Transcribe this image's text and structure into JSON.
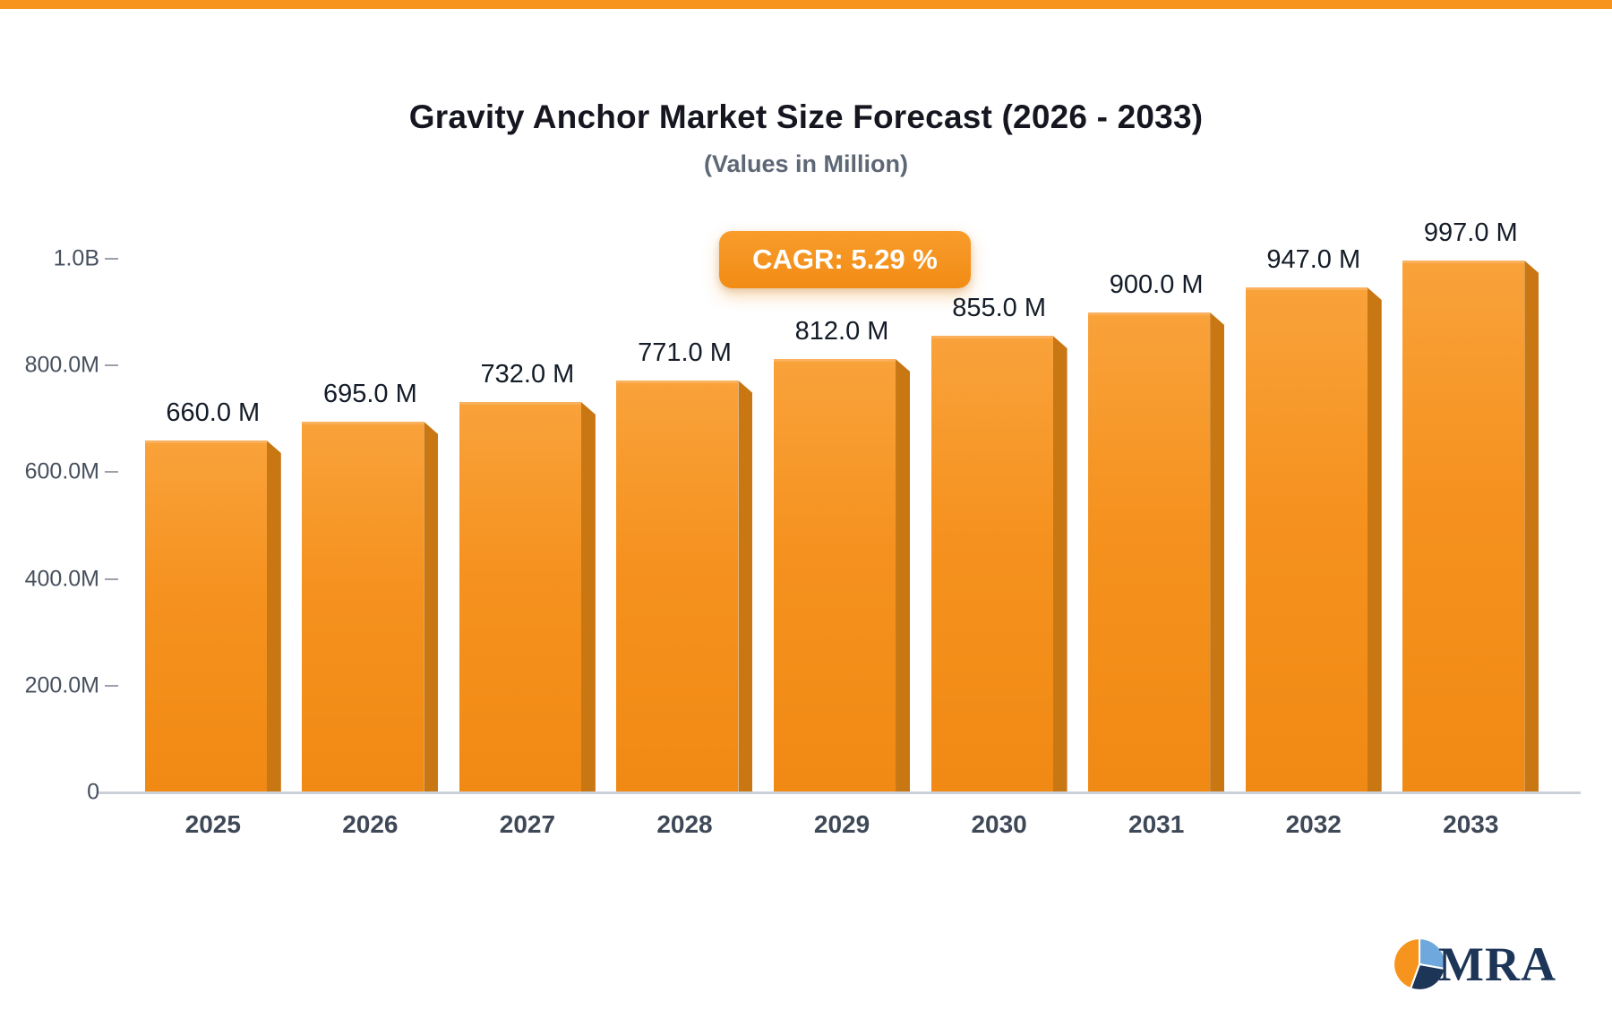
{
  "page": {
    "title": "Gravity Anchor Market Size Forecast (2026 - 2033)",
    "subtitle": "(Values in Million)",
    "cagr_badge": "CAGR: 5.29 %",
    "brand_text": "MRA"
  },
  "colors": {
    "accent_orange": "#F7941E",
    "bar_face": "#F5911E",
    "bar_side": "#C97713",
    "title_text": "#15161f",
    "subtitle_text": "#5d6775",
    "axis_text": "#47505e",
    "x_label_text": "#3e4857",
    "brand_navy": "#1d3557",
    "brand_blue": "#6FA8DC"
  },
  "chart_data": {
    "type": "bar",
    "title": "Gravity Anchor Market Size Forecast (2026 - 2033)",
    "subtitle": "(Values in Million)",
    "annotation": "CAGR: 5.29 %",
    "categories": [
      "2025",
      "2026",
      "2027",
      "2028",
      "2029",
      "2030",
      "2031",
      "2032",
      "2033"
    ],
    "values": [
      660,
      695,
      732,
      771,
      812,
      855,
      900,
      947,
      997
    ],
    "value_labels": [
      "660.0 M",
      "695.0 M",
      "732.0 M",
      "771.0 M",
      "812.0 M",
      "855.0 M",
      "900.0 M",
      "947.0 M",
      "997.0 M"
    ],
    "unit": "Million",
    "xlabel": "",
    "ylabel": "",
    "ylim": [
      0,
      1000
    ],
    "yticks": [
      {
        "value": 0,
        "label": "0"
      },
      {
        "value": 200,
        "label": "200.0M"
      },
      {
        "value": 400,
        "label": "400.0M"
      },
      {
        "value": 600,
        "label": "600.0M"
      },
      {
        "value": 800,
        "label": "800.0M"
      },
      {
        "value": 1000,
        "label": "1.0B"
      }
    ],
    "grid": false,
    "legend": "none"
  }
}
